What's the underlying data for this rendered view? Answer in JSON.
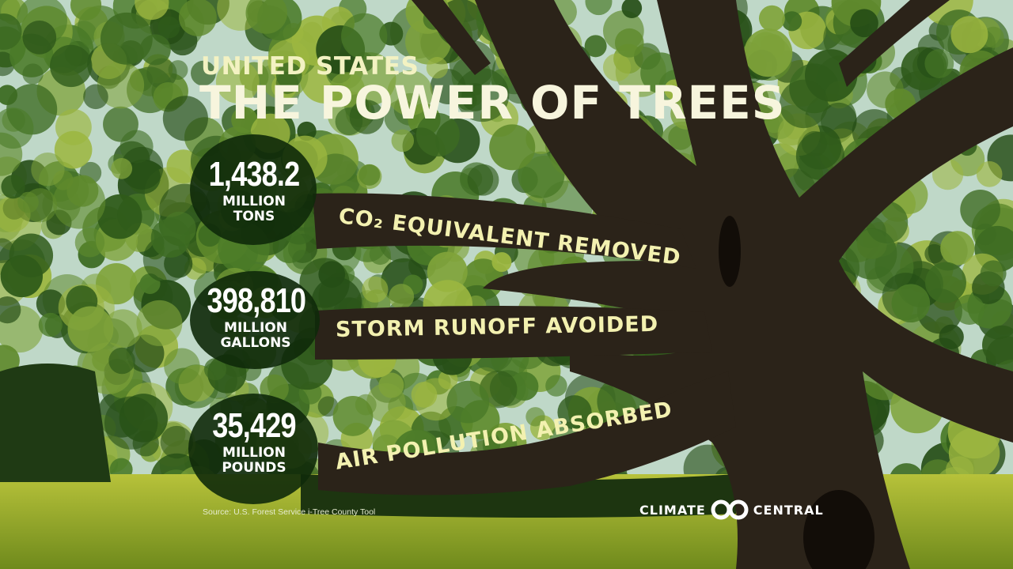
{
  "header": {
    "kicker": "UNITED STATES",
    "title": "THE POWER OF TREES"
  },
  "stats": [
    {
      "value": "1,438.2",
      "unit_line1": "MILLION",
      "unit_line2": "TONS",
      "label": "CO₂ EQUIVALENT REMOVED"
    },
    {
      "value": "398,810",
      "unit_line1": "MILLION",
      "unit_line2": "GALLONS",
      "label": "STORM RUNOFF AVOIDED"
    },
    {
      "value": "35,429",
      "unit_line1": "MILLION",
      "unit_line2": "POUNDS",
      "label": "AIR POLLUTION ABSORBED"
    }
  ],
  "footer": {
    "source": "Source: U.S. Forest Service i-Tree County Tool",
    "logo_left": "CLIMATE",
    "logo_right": "CENTRAL"
  },
  "colors": {
    "title": "#f7f5dd",
    "label": "#f3f1b0",
    "bark": "#2b2319",
    "foliage": "#4d7a2a",
    "grass": "#a9b834"
  },
  "icons": [
    "climate-central-logo-icon"
  ]
}
